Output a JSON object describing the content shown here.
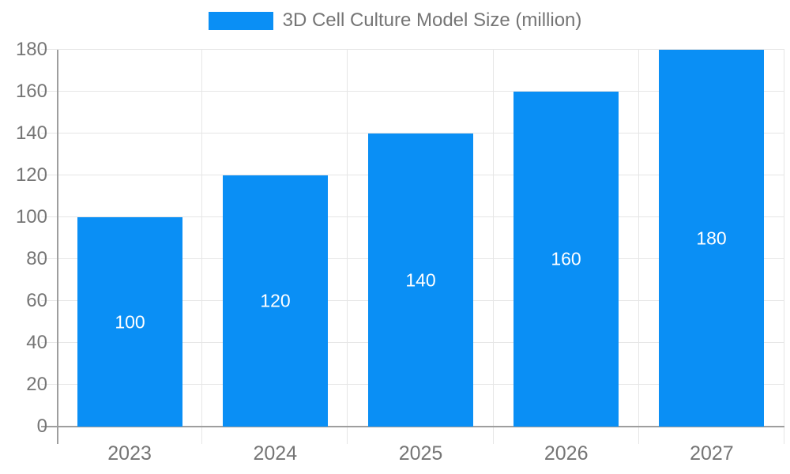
{
  "chart_data": {
    "type": "bar",
    "title": "3D Cell Culture Model Size (million)",
    "categories": [
      "2023",
      "2024",
      "2025",
      "2026",
      "2027"
    ],
    "values": [
      100,
      120,
      140,
      160,
      180
    ],
    "data_labels": [
      "100",
      "120",
      "140",
      "160",
      "180"
    ],
    "xlabel": "",
    "ylabel": "",
    "ylim": [
      0,
      180
    ],
    "ytick_step": 20,
    "yticks": [
      0,
      20,
      40,
      60,
      80,
      100,
      120,
      140,
      160,
      180
    ],
    "grid": true,
    "legend_position": "top",
    "colors": {
      "bar": "#0a8ff5",
      "bar_label": "#ffffff",
      "axis_text": "#757575",
      "grid_line": "#e6e6e6",
      "axis_line": "#9e9e9e",
      "background": "#ffffff"
    }
  }
}
